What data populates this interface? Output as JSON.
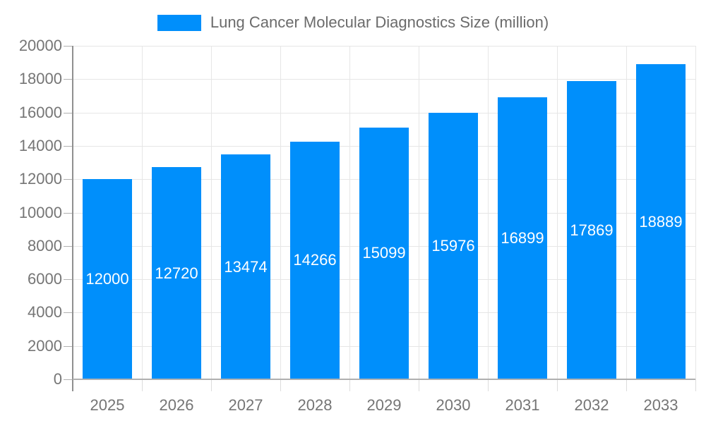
{
  "legend": {
    "label": "Lung Cancer Molecular Diagnostics Size (million)"
  },
  "chart_data": {
    "type": "bar",
    "title": "Lung Cancer Molecular Diagnostics Size (million)",
    "categories": [
      "2025",
      "2026",
      "2027",
      "2028",
      "2029",
      "2030",
      "2031",
      "2032",
      "2033"
    ],
    "values": [
      12000,
      12720,
      13474,
      14266,
      15099,
      15976,
      16899,
      17869,
      18889
    ],
    "series": [
      {
        "name": "Lung Cancer Molecular Diagnostics Size (million)",
        "values": [
          12000,
          12720,
          13474,
          14266,
          15099,
          15976,
          16899,
          17869,
          18889
        ]
      }
    ],
    "xlabel": "",
    "ylabel": "",
    "ylim": [
      0,
      20000
    ],
    "yticks": [
      0,
      2000,
      4000,
      6000,
      8000,
      10000,
      12000,
      14000,
      16000,
      18000,
      20000
    ],
    "grid": true,
    "legend_position": "top-center",
    "value_label_position": "inside-center",
    "colors": {
      "bar": "#008FFB",
      "value_label": "#ffffff",
      "axis_text": "#757575",
      "legend_text": "#6b6b6b",
      "grid_line": "#e6e6e6",
      "axis_line": "#8f8f8f",
      "baseline": "#b0b0b0"
    }
  }
}
